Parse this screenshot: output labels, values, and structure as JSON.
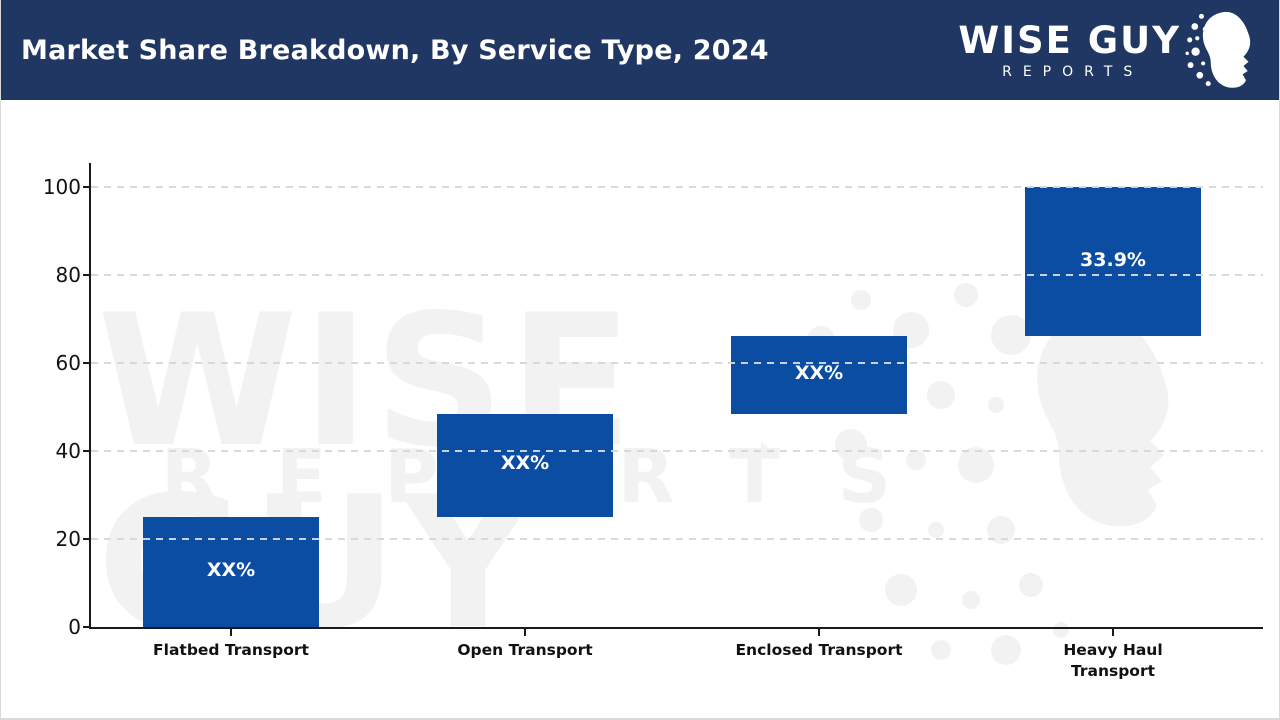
{
  "header": {
    "title": "Market Share Breakdown, By Service Type, 2024",
    "logo": {
      "line1": "WISE GUY",
      "line2": "REPORTS"
    }
  },
  "watermark": {
    "line1": "WISE GUY",
    "line2": "REPORTS"
  },
  "chart_data": {
    "type": "bar",
    "variant": "floating-stacked-waterfall",
    "title": "Market Share Breakdown, By Service Type, 2024",
    "categories": [
      "Flatbed Transport",
      "Open Transport",
      "Enclosed Transport",
      "Heavy Haul Transport"
    ],
    "xtick_labels": [
      "Flatbed Transport",
      "Open Transport",
      "Enclosed Transport",
      "Heavy Haul\nTransport"
    ],
    "segments": [
      {
        "category": "Flatbed Transport",
        "start": 0,
        "end": 25.0,
        "value": 25.0,
        "value_label": "XX%"
      },
      {
        "category": "Open Transport",
        "start": 25.0,
        "end": 48.5,
        "value": 23.5,
        "value_label": "XX%"
      },
      {
        "category": "Enclosed Transport",
        "start": 48.5,
        "end": 66.1,
        "value": 17.6,
        "value_label": "XX%"
      },
      {
        "category": "Heavy Haul Transport",
        "start": 66.1,
        "end": 100.0,
        "value": 33.9,
        "value_label": "33.9%"
      }
    ],
    "ylim": [
      0,
      100
    ],
    "yticks": [
      0,
      20,
      40,
      60,
      80,
      100
    ],
    "grid": "horizontal dashed, drawn over bars",
    "legend": "none",
    "bar_color": "#0b4da2",
    "bar_label_color": "#ffffff",
    "header_color": "#213763",
    "watermark_color": "#f2f2f3"
  }
}
